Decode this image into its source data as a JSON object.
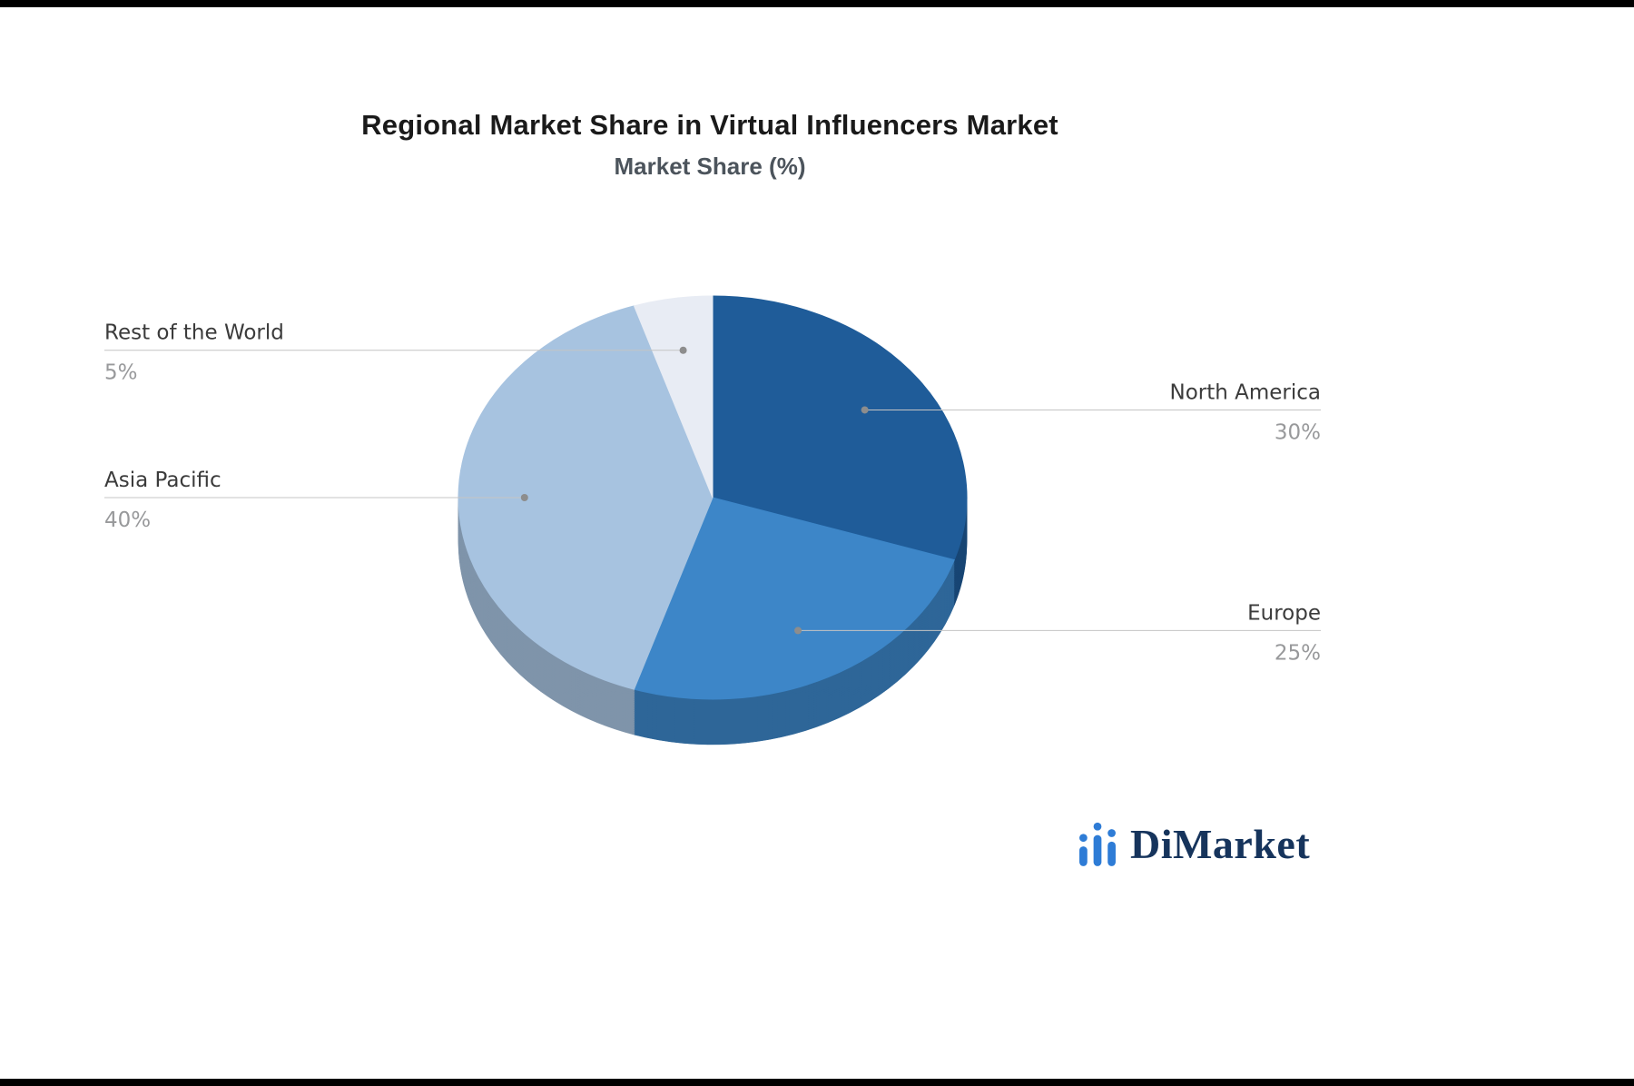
{
  "page": {
    "background": "#ffffff",
    "frame_bar_color": "#000000"
  },
  "chart_data": {
    "type": "pie",
    "style": "pie-3d",
    "title": "Regional Market Share in Virtual Influencers Market",
    "subtitle": "Market Share (%)",
    "unit": "%",
    "categories": [
      "North America",
      "Europe",
      "Asia Pacific",
      "Rest of the World"
    ],
    "values": [
      30,
      25,
      40,
      5
    ],
    "value_labels": [
      "30%",
      "25%",
      "40%",
      "5%"
    ],
    "colors": [
      "#1F5C99",
      "#3D86C8",
      "#A7C3E0",
      "#E8ECF4"
    ],
    "start_angle_deg": 0,
    "direction": "clockwise",
    "legend_position": "none",
    "label_style": {
      "name_color": "#3B3B3B",
      "value_color": "#98999B",
      "line_color": "#C4C4C4",
      "dot_color": "#8D8D8D"
    }
  },
  "branding": {
    "logo_text": "DiMarket",
    "logo_icon": "bar-chart-icon",
    "text_color": "#16345C",
    "icon_color": "#2E7CD6"
  }
}
